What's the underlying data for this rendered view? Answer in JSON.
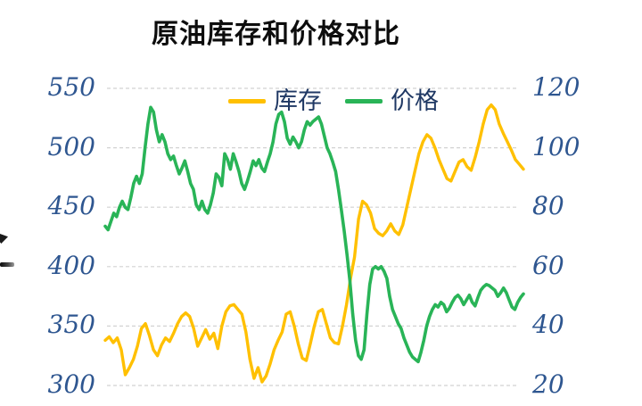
{
  "chart_data": {
    "type": "line",
    "title": "原油库存和价格对比",
    "x_axis": {
      "labels_visible": false,
      "unit": "time (weekly, no tick labels shown)"
    },
    "grid": {
      "horizontal_dashed": true,
      "vertical": false,
      "color": "#d2d2d2"
    },
    "legend_position": "top-center-inside",
    "axes": {
      "left": {
        "ticks": [
          550,
          500,
          450,
          400,
          350,
          300
        ],
        "range": [
          300,
          550
        ]
      },
      "right": {
        "ticks": [
          120,
          100,
          80,
          60,
          40,
          20
        ],
        "range": [
          20,
          120
        ]
      }
    },
    "series": [
      {
        "name": "库存",
        "axis": "left",
        "color": "#FFC000",
        "values": [
          338,
          341,
          336,
          340,
          330,
          309,
          315,
          322,
          333,
          348,
          352,
          342,
          330,
          325,
          334,
          340,
          337,
          344,
          352,
          358,
          361,
          358,
          348,
          333,
          340,
          347,
          339,
          344,
          331,
          350,
          362,
          367,
          368,
          364,
          360,
          345,
          322,
          306,
          315,
          303,
          308,
          318,
          330,
          338,
          345,
          360,
          362,
          350,
          335,
          323,
          321,
          335,
          350,
          362,
          364,
          352,
          340,
          336,
          335,
          350,
          368,
          390,
          408,
          440,
          455,
          452,
          445,
          432,
          428,
          426,
          430,
          436,
          430,
          427,
          435,
          450,
          465,
          480,
          495,
          505,
          511,
          508,
          500,
          490,
          482,
          474,
          472,
          480,
          488,
          490,
          484,
          481,
          492,
          505,
          520,
          532,
          536,
          532,
          520,
          512,
          505,
          498,
          490,
          486,
          482
        ]
      },
      {
        "name": "价格",
        "axis": "right",
        "color": "#29B457",
        "values": [
          73.6,
          72.4,
          75.2,
          78,
          76.8,
          80,
          82,
          80,
          79.2,
          83.2,
          88,
          90.4,
          88,
          91.2,
          100,
          108,
          113.6,
          112,
          106,
          102,
          104.4,
          102,
          98,
          96,
          97.2,
          94,
          91.2,
          93.2,
          95.6,
          92,
          88,
          86,
          80.8,
          79.2,
          82,
          79.2,
          78,
          80.8,
          84.8,
          91.2,
          90,
          87.2,
          98,
          96,
          92.8,
          98,
          95.2,
          92,
          88,
          86,
          88.8,
          92,
          95.6,
          94,
          96,
          93.2,
          92,
          95.2,
          98,
          102,
          108,
          111.2,
          112,
          108.8,
          103.2,
          101.2,
          103.6,
          102,
          100,
          102,
          106,
          108.8,
          107.6,
          108.8,
          109.6,
          110.4,
          108,
          104,
          100,
          98,
          95.2,
          92,
          86,
          79.2,
          72,
          64,
          55.2,
          44,
          35.2,
          30,
          28.8,
          32,
          44,
          54,
          59.2,
          60,
          59.2,
          60,
          58.4,
          56,
          50,
          45.6,
          43.2,
          40.8,
          39.2,
          36,
          33.6,
          31.2,
          29.6,
          28.8,
          28,
          31.2,
          35.2,
          40,
          43.2,
          45.6,
          47.2,
          46.4,
          48,
          47.2,
          44.8,
          46,
          48,
          49.6,
          50.4,
          49.2,
          47.2,
          48.8,
          50.4,
          48,
          46.8,
          49.6,
          52,
          53.2,
          54,
          53.6,
          52.8,
          52,
          50,
          51.2,
          52.8,
          51.2,
          48.8,
          46.4,
          45.6,
          48,
          49.6,
          50.8
        ]
      }
    ]
  }
}
